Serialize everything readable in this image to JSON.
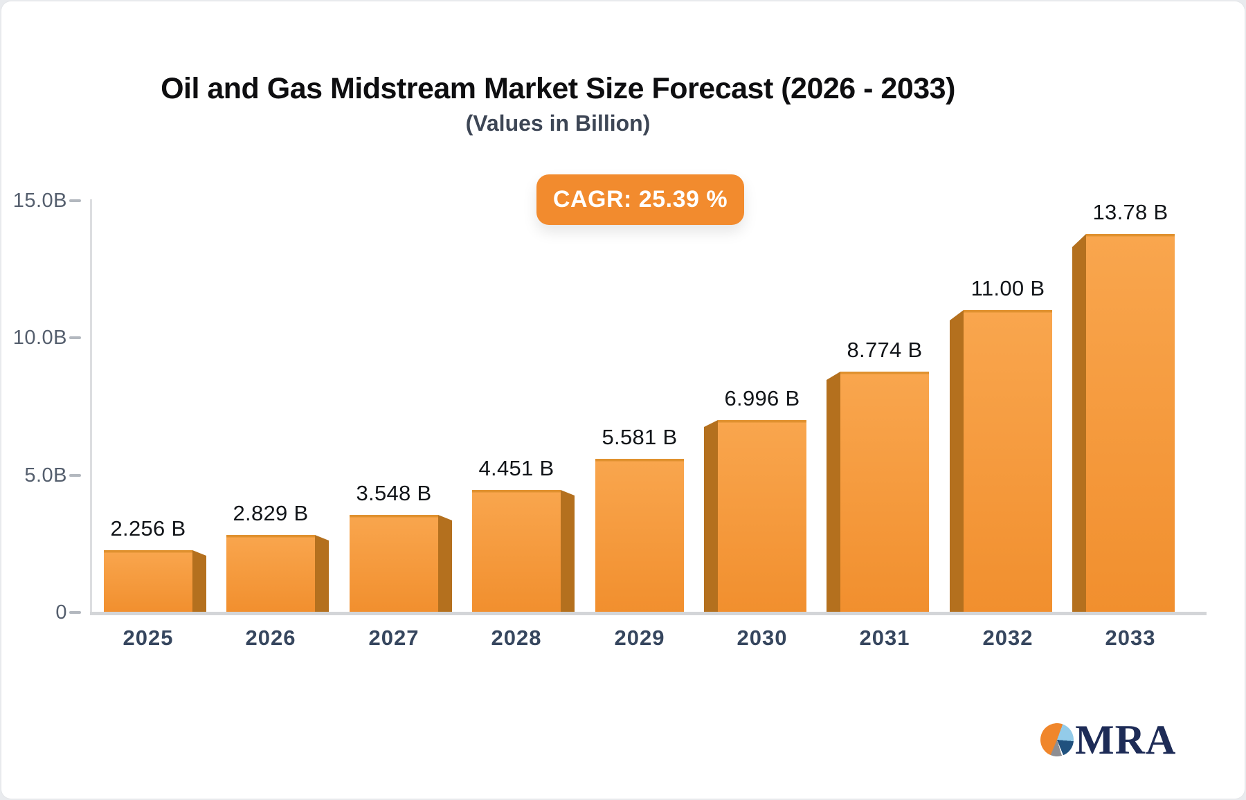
{
  "header": {
    "title": "Oil and Gas Midstream Market Size Forecast (2026 - 2033)",
    "subtitle": "(Values in Billion)"
  },
  "badge": {
    "label": "CAGR: 25.39 %",
    "color": "#f28b2e"
  },
  "chart_data": {
    "type": "bar",
    "title": "Oil and Gas Midstream Market Size Forecast (2026 - 2033)",
    "subtitle": "(Values in Billion)",
    "cagr": "25.39 %",
    "categories": [
      "2025",
      "2026",
      "2027",
      "2028",
      "2029",
      "2030",
      "2031",
      "2032",
      "2033"
    ],
    "values": [
      2.256,
      2.829,
      3.548,
      4.451,
      5.581,
      6.996,
      8.774,
      11.0,
      13.78
    ],
    "value_labels": [
      "2.256 B",
      "2.829 B",
      "3.548 B",
      "4.451 B",
      "5.581 B",
      "6.996 B",
      "8.774 B",
      "11.00 B",
      "13.78 B"
    ],
    "xlabel": "",
    "ylabel": "",
    "ylim": [
      0,
      15
    ],
    "yticks": [
      {
        "value": 0,
        "label": "0"
      },
      {
        "value": 5,
        "label": "5.0B"
      },
      {
        "value": 10,
        "label": "10.0B"
      },
      {
        "value": 15,
        "label": "15.0B"
      }
    ],
    "grid": false,
    "legend": false,
    "colors": {
      "bar_front_top": "#f9a64e",
      "bar_front_bottom": "#f18f2e",
      "bar_side": "#b4701e",
      "bar_top_edge": "#e0912f"
    }
  },
  "logo": {
    "text": "MRA",
    "icon": "pie-chart-logo-icon",
    "text_color": "#1d2b56",
    "pie_slices": [
      {
        "color": "#f0862b",
        "start": 0,
        "end": 20
      },
      {
        "color": "#93cbe9",
        "start": 20,
        "end": 95
      },
      {
        "color": "#20517e",
        "start": 95,
        "end": 158
      },
      {
        "color": "#ffffff",
        "start": 158,
        "end": 163
      },
      {
        "color": "#8e8e92",
        "start": 163,
        "end": 203
      },
      {
        "color": "#f0862b",
        "start": 203,
        "end": 360
      }
    ]
  }
}
